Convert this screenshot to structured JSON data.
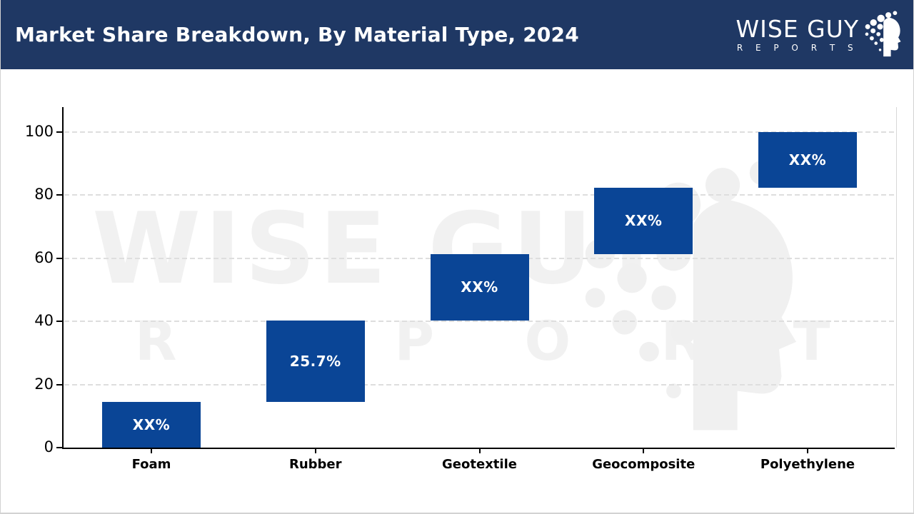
{
  "header": {
    "background": "#1f3864",
    "title": "Market Share Breakdown, By Material Type, 2024",
    "logo": {
      "wordmark": "WISE GUY",
      "subtext": "R E P O R T S",
      "head_icon": "dotted-head-profile"
    }
  },
  "watermark": {
    "line1": "WISE GUY",
    "line2": "R E P O R T S",
    "head_icon": "dotted-head-profile",
    "color": "#f1f1f1"
  },
  "chart_data": {
    "type": "bar",
    "subtype": "floating-waterfall",
    "title": "Market Share Breakdown, By Material Type, 2024",
    "categories": [
      "Foam",
      "Rubber",
      "Geotextile",
      "Geocomposite",
      "Polyethylene"
    ],
    "segments": [
      {
        "category": "Foam",
        "start": 0,
        "end": 14.5,
        "label": "XX%"
      },
      {
        "category": "Rubber",
        "start": 14.5,
        "end": 40.2,
        "label": "25.7%"
      },
      {
        "category": "Geotextile",
        "start": 40.2,
        "end": 61.4,
        "label": "XX%"
      },
      {
        "category": "Geocomposite",
        "start": 61.4,
        "end": 82.4,
        "label": "XX%"
      },
      {
        "category": "Polyethylene",
        "start": 82.4,
        "end": 100,
        "label": "XX%"
      }
    ],
    "yticks": [
      0,
      20,
      40,
      60,
      80,
      100
    ],
    "ylim": [
      0,
      108
    ],
    "xlabel": "",
    "ylabel": "",
    "grid": "horizontal-dashed",
    "legend": "none",
    "bar_color": "#0a4596",
    "bar_label_color": "#ffffff",
    "grid_color": "#dedede",
    "axis_color": "#000000"
  }
}
